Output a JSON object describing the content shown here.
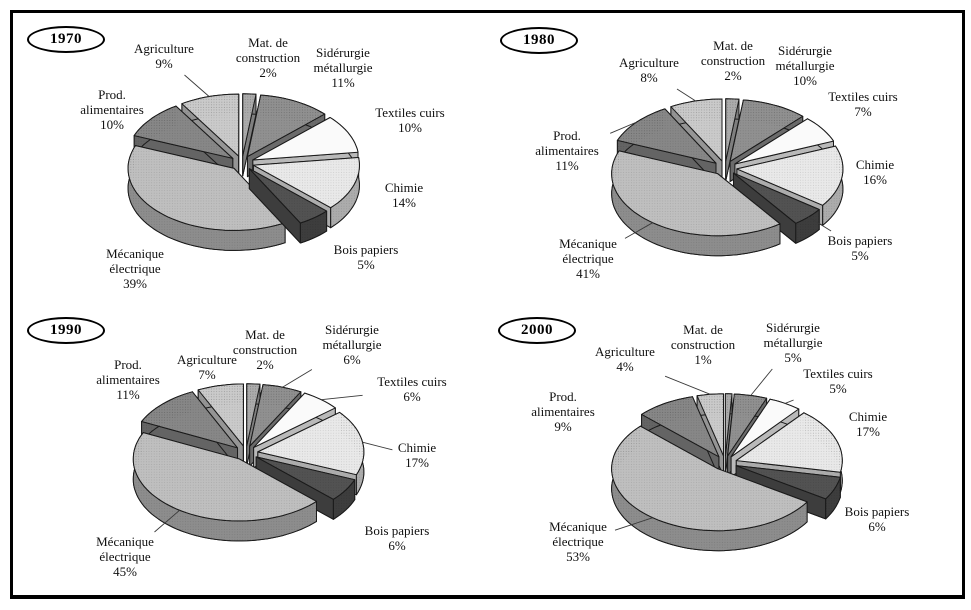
{
  "page": {
    "background": "#ffffff",
    "frame_color": "#000000"
  },
  "chart_data": {
    "type": "pie",
    "style": "3d-exploded",
    "unit": "%",
    "grid": false,
    "legend_position": "none",
    "categories": [
      "Mat. de construction",
      "Sidérurgie métallurgie",
      "Textiles cuirs",
      "Chimie",
      "Bois papiers",
      "Mécanique électrique",
      "Prod. alimentaires",
      "Agriculture"
    ],
    "series": [
      {
        "name": "1970",
        "values": [
          2,
          11,
          10,
          14,
          5,
          39,
          10,
          9
        ]
      },
      {
        "name": "1980",
        "values": [
          2,
          10,
          7,
          16,
          5,
          41,
          11,
          8
        ]
      },
      {
        "name": "1990",
        "values": [
          2,
          6,
          6,
          17,
          6,
          45,
          11,
          7
        ]
      },
      {
        "name": "2000",
        "values": [
          1,
          5,
          5,
          17,
          6,
          53,
          9,
          4
        ]
      }
    ],
    "slice_colors": {
      "Mat. de construction": "#ababab",
      "Sidérurgie métallurgie": "#909090",
      "Textiles cuirs": "#fafafa",
      "Chimie": "#e9e9e9",
      "Bois papiers": "#525252",
      "Mécanique électrique": "#bfbfbf",
      "Prod. alimentaires": "#878787",
      "Agriculture": "#cacaca"
    },
    "label_lines": {
      "Mat. de construction": [
        "Mat. de",
        "construction"
      ],
      "Sidérurgie métallurgie": [
        "Sidérurgie",
        "métallurgie"
      ],
      "Textiles cuirs": [
        "Textiles cuirs"
      ],
      "Chimie": [
        "Chimie"
      ],
      "Bois papiers": [
        "Bois papiers"
      ],
      "Mécanique électrique": [
        "Mécanique",
        "électrique"
      ],
      "Prod. alimentaires": [
        "Prod.",
        "alimentaires"
      ],
      "Agriculture": [
        "Agriculture"
      ]
    }
  }
}
